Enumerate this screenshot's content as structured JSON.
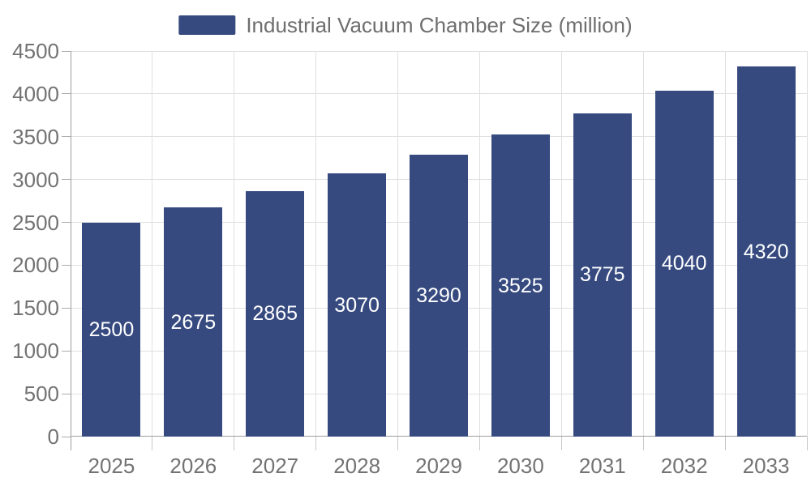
{
  "chart_data": {
    "type": "bar",
    "title": "Industrial Vacuum Chamber Size (million)",
    "categories": [
      "2025",
      "2026",
      "2027",
      "2028",
      "2029",
      "2030",
      "2031",
      "2032",
      "2033"
    ],
    "values": [
      2500,
      2675,
      2865,
      3070,
      3290,
      3525,
      3775,
      4040,
      4320
    ],
    "value_labels": [
      "2500",
      "2675",
      "2865",
      "3070",
      "3290",
      "3525",
      "3775",
      "4040",
      "4320"
    ],
    "xlabel": "",
    "ylabel": "",
    "ylim": [
      0,
      4500
    ],
    "ytick_step": 500,
    "yticks": [
      "0",
      "500",
      "1000",
      "1500",
      "2000",
      "2500",
      "3000",
      "3500",
      "4000",
      "4500"
    ],
    "grid": true,
    "legend_position": "top-center",
    "legend_entries": [
      "Industrial Vacuum Chamber Size (million)"
    ],
    "colors": {
      "bar": "#364A80",
      "gridline": "#E0E0E0",
      "axis_line": "#9E9E9E",
      "y_tick": "#ADADAD",
      "x_tick": "#C9C9C9",
      "tick_label": "#737373",
      "legend_text": "#6E6E6E",
      "value_label": "#FFFFFF"
    }
  }
}
